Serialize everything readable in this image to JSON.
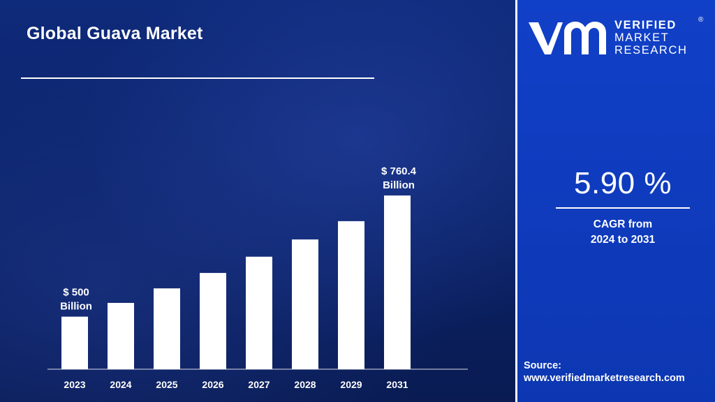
{
  "chart_data": {
    "type": "bar",
    "title": "Global Guava Market",
    "xlabel": "",
    "ylabel": "",
    "categories": [
      "2023",
      "2024",
      "2025",
      "2026",
      "2027",
      "2028",
      "2029",
      "2031"
    ],
    "values": [
      500,
      529.5,
      560.7,
      593.8,
      628.8,
      665.9,
      705.2,
      760.4
    ],
    "unit": "USD Billion",
    "ylim": [
      0,
      840
    ],
    "grid": false,
    "legend": "none",
    "annotations": [
      {
        "category": "2023",
        "line1": "$ 500",
        "line2": "Billion"
      },
      {
        "category": "2031",
        "line1": "$ 760.4",
        "line2": "Billion"
      }
    ],
    "bar_color": "#ffffff"
  },
  "brand": {
    "line1": "VERIFIED",
    "line2": "MARKET",
    "line3": "RESEARCH",
    "registered": "®"
  },
  "cagr": {
    "value": "5.90 %",
    "label_line1": "CAGR from",
    "label_line2": "2024 to 2031"
  },
  "source": {
    "label": "Source:",
    "url": "www.verifiedmarketresearch.com"
  },
  "colors": {
    "left_panel": "#0b2266",
    "right_panel": "#0f3cc0",
    "text": "#ffffff"
  }
}
